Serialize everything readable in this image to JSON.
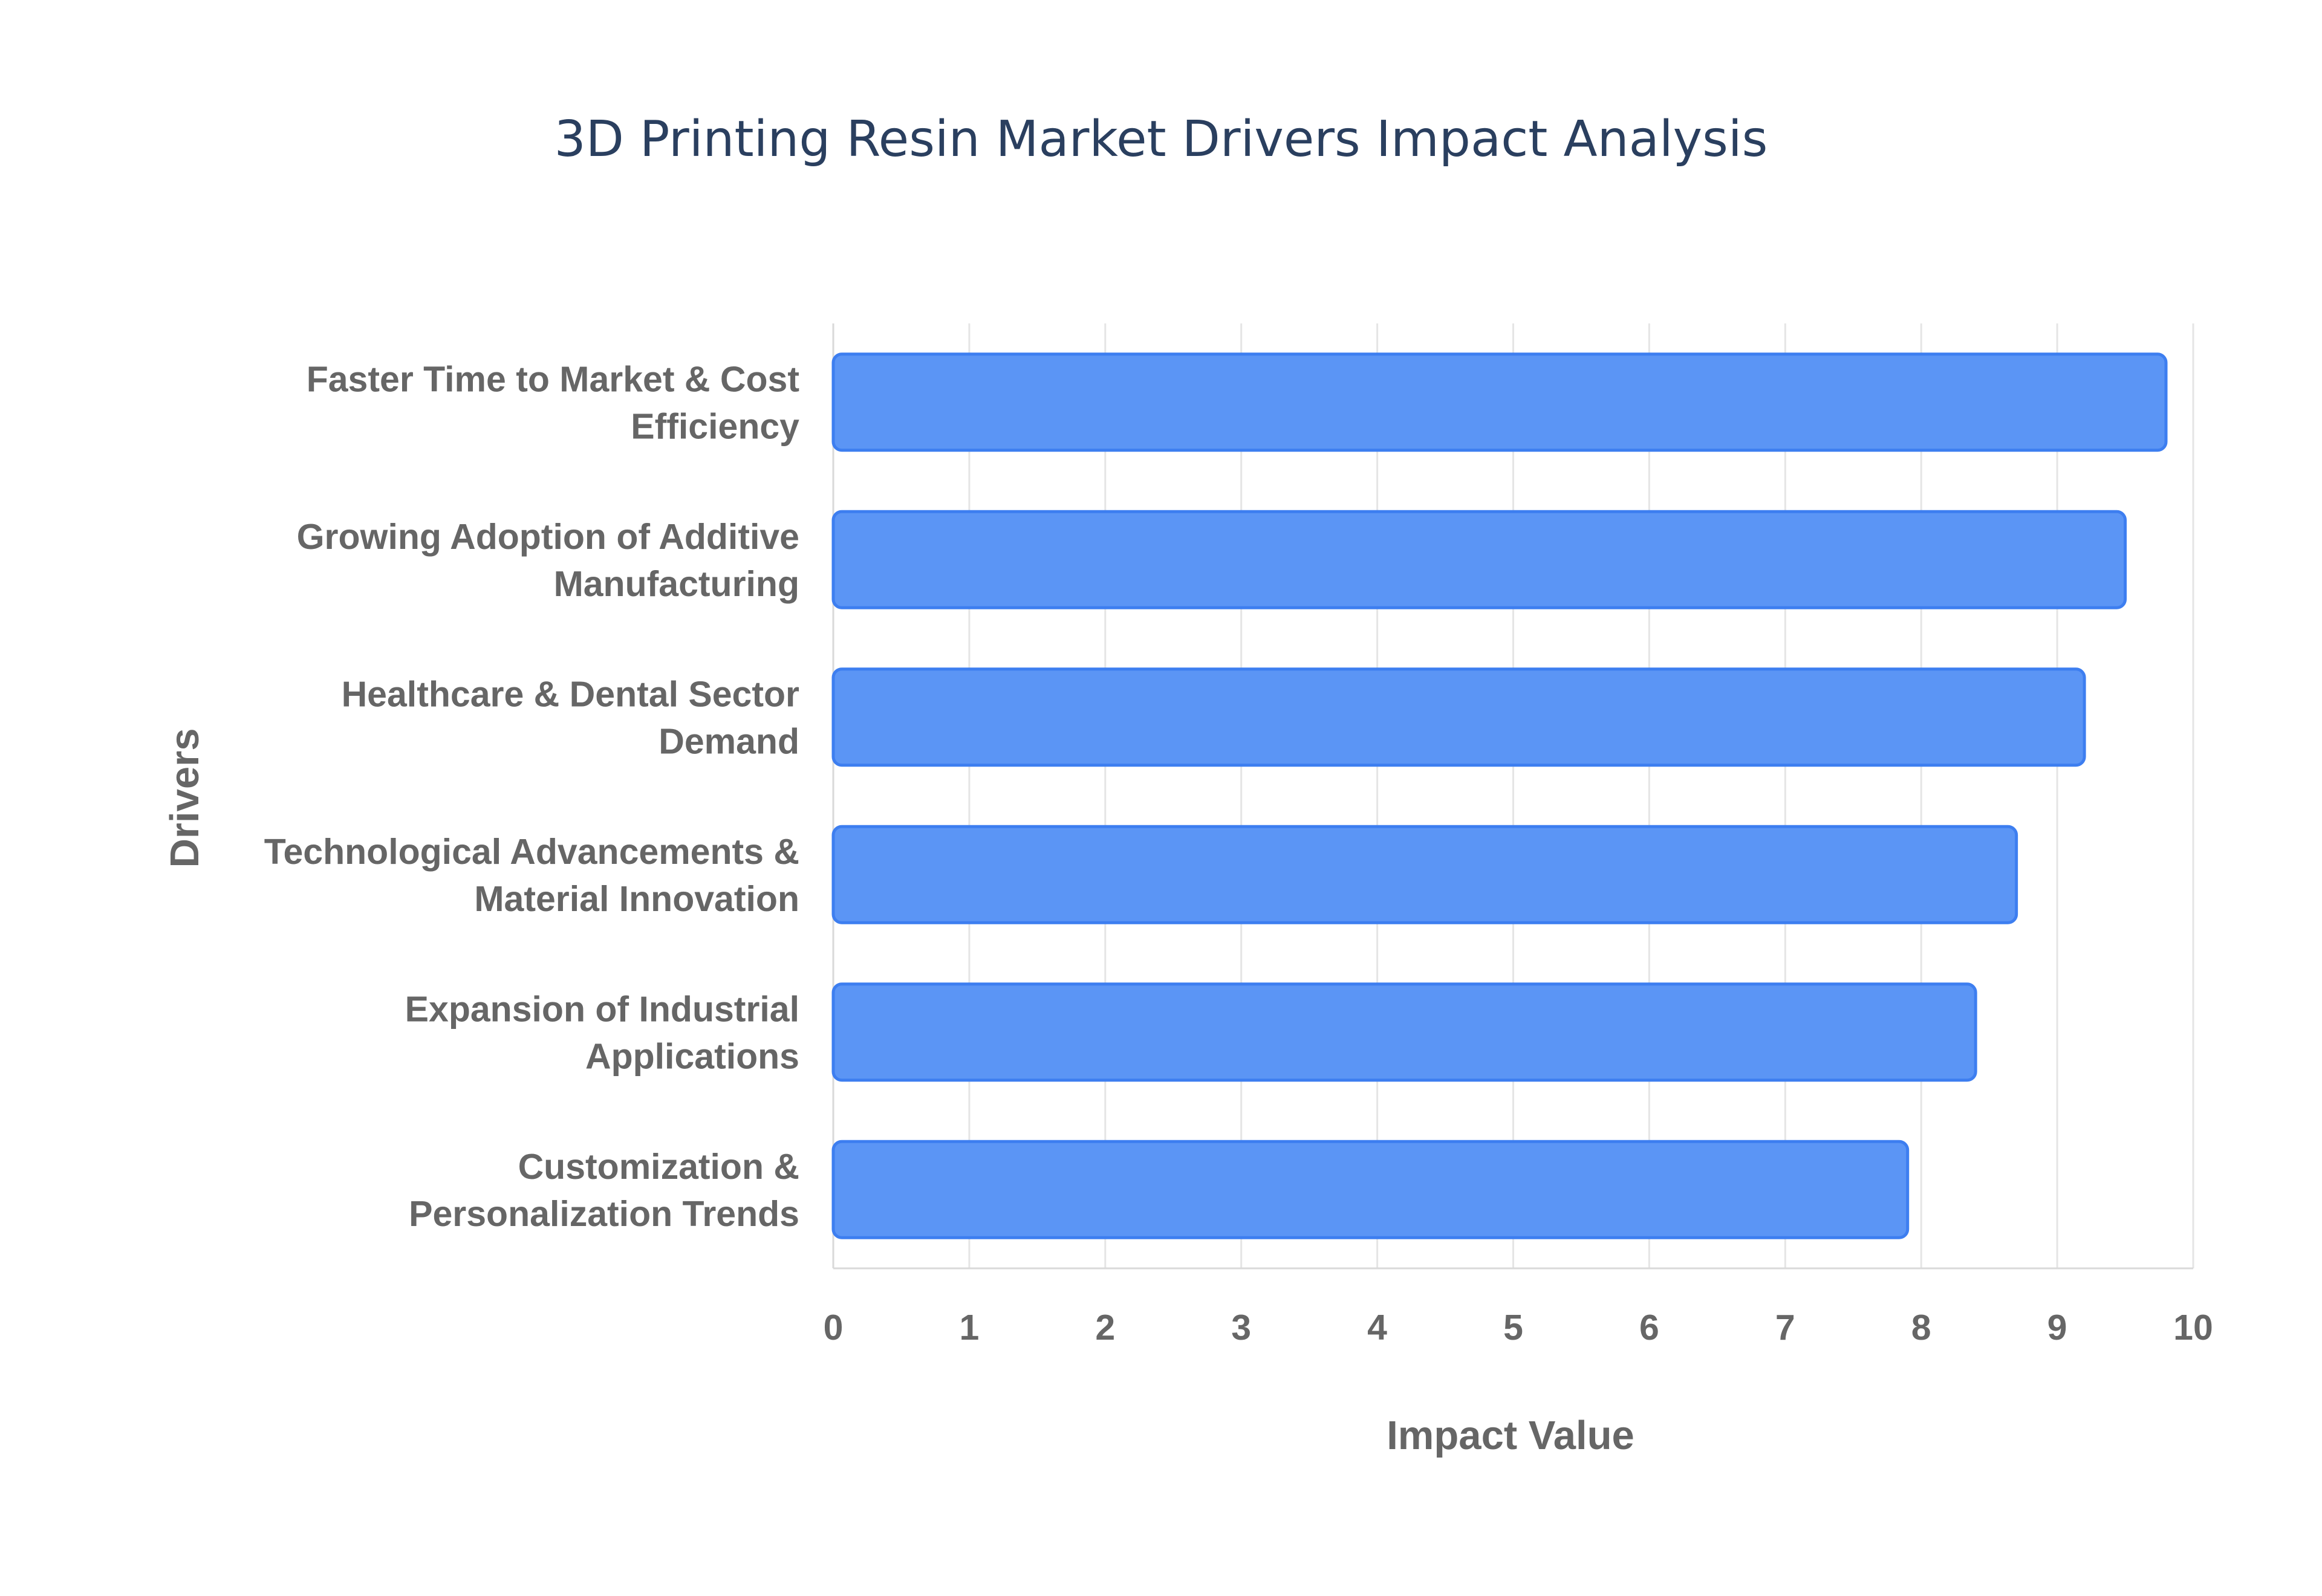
{
  "chart_data": {
    "type": "bar",
    "orientation": "horizontal",
    "title": "3D Printing Resin Market Drivers Impact Analysis",
    "xlabel": "Impact Value",
    "ylabel": "Drivers",
    "xlim": [
      0,
      10
    ],
    "x_ticks": [
      "0",
      "1",
      "2",
      "3",
      "4",
      "5",
      "6",
      "7",
      "8",
      "9",
      "10"
    ],
    "grid": true,
    "bar_color": "#5b95f5",
    "bar_edge_color": "#3d7ef0",
    "categories": [
      [
        "Faster Time to Market & Cost",
        "Efficiency"
      ],
      [
        "Growing Adoption of Additive",
        "Manufacturing"
      ],
      [
        "Healthcare & Dental Sector",
        "Demand"
      ],
      [
        "Technological Advancements &",
        "Material Innovation"
      ],
      [
        "Expansion of Industrial",
        "Applications"
      ],
      [
        "Customization &",
        "Personalization Trends"
      ]
    ],
    "values": [
      9.8,
      9.5,
      9.2,
      8.7,
      8.4,
      7.9
    ]
  }
}
